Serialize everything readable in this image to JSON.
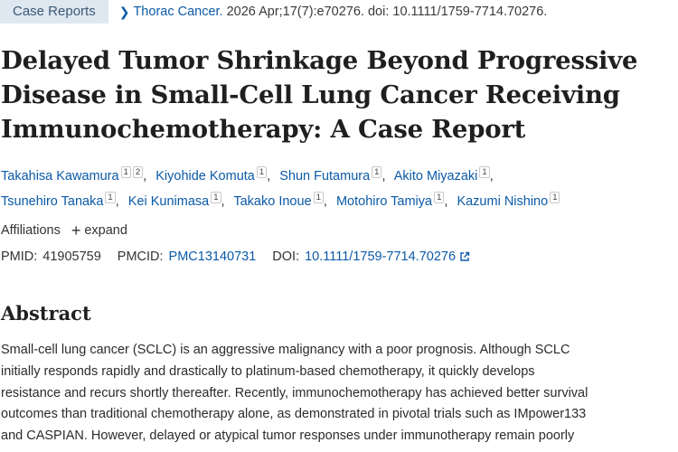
{
  "header": {
    "article_type": "Case Reports",
    "journal": "Thorac Cancer.",
    "citation": "2026 Apr;17(7):e70276. doi: 10.1111/1759-7714.70276."
  },
  "title_lines": [
    "Delayed Tumor Shrinkage Beyond Progressive",
    "Disease in Small-Cell Lung Cancer Receiving",
    "Immunochemotherapy: A Case Report"
  ],
  "authors": [
    {
      "name": "Takahisa Kawamura",
      "aff": [
        "1",
        "2"
      ]
    },
    {
      "name": "Kiyohide Komuta",
      "aff": [
        "1"
      ]
    },
    {
      "name": "Shun Futamura",
      "aff": [
        "1"
      ]
    },
    {
      "name": "Akito Miyazaki",
      "aff": [
        "1"
      ]
    },
    {
      "name": "Tsunehiro Tanaka",
      "aff": [
        "1"
      ]
    },
    {
      "name": "Kei Kunimasa",
      "aff": [
        "1"
      ]
    },
    {
      "name": "Takako Inoue",
      "aff": [
        "1"
      ]
    },
    {
      "name": "Motohiro Tamiya",
      "aff": [
        "1"
      ]
    },
    {
      "name": "Kazumi Nishino",
      "aff": [
        "1"
      ]
    }
  ],
  "affiliations": {
    "label": "Affiliations",
    "toggle": "expand"
  },
  "identifiers": {
    "pmid_label": "PMID:",
    "pmid": "41905759",
    "pmcid_label": "PMCID:",
    "pmcid": "PMC13140731",
    "doi_label": "DOI:",
    "doi": "10.1111/1759-7714.70276"
  },
  "abstract": {
    "heading": "Abstract",
    "lines": [
      "Small-cell lung cancer (SCLC) is an aggressive malignancy with a poor prognosis. Although SCLC",
      "initially responds rapidly and drastically to platinum-based chemotherapy, it quickly develops",
      "resistance and recurs shortly thereafter. Recently, immunochemotherapy has achieved better survival",
      "outcomes than traditional chemotherapy alone, as demonstrated in pivotal trials such as IMpower133",
      "and CASPIAN. However, delayed or atypical tumor responses under immunotherapy remain poorly"
    ]
  },
  "icons": {
    "breadcrumb": "chevron-right-icon",
    "expand": "plus-icon",
    "external": "external-link-icon"
  },
  "colors": {
    "link": "#0b5aa8",
    "badge_bg": "#dfe8f1",
    "badge_text": "#3c5a78",
    "text": "#212121"
  }
}
